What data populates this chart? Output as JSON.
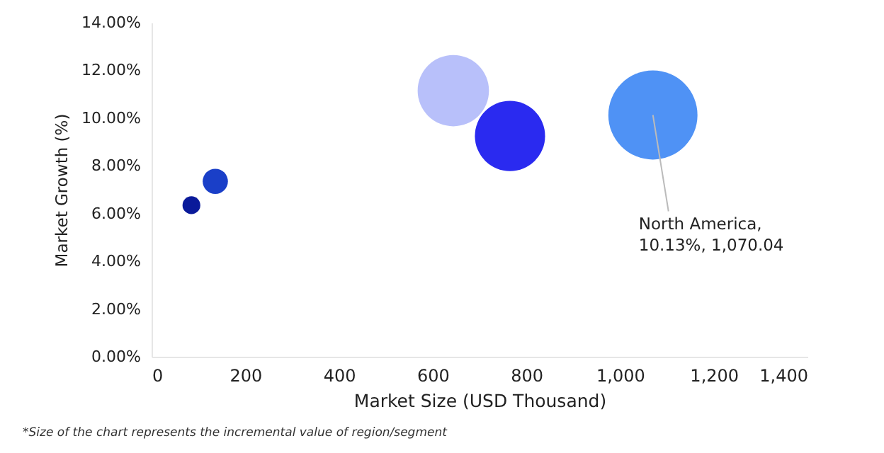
{
  "chart_data": {
    "type": "bubble",
    "xlabel": "Market Size (USD Thousand)",
    "ylabel": "Market Growth (%)",
    "x": [
      85,
      136,
      644,
      765,
      1070.04
    ],
    "series": [
      {
        "values": [
          6.35,
          7.35,
          11.15,
          9.25,
          10.13
        ],
        "sizes": [
          0.04,
          0.08,
          0.64,
          0.62,
          1
        ],
        "colors": [
          "#0a1a9a",
          "#1a3fc8",
          "#b8c0fa",
          "#2a2af0",
          "#4f92f5"
        ]
      }
    ],
    "xlim": [
      0,
      1400
    ],
    "xticks": [
      0,
      200,
      400,
      600,
      800,
      {
        "value": 1000,
        "label": "1,000"
      },
      {
        "value": 1200,
        "label": "1,200"
      },
      {
        "value": 1400,
        "label": "1,400"
      }
    ],
    "ylim": [
      0,
      14
    ],
    "yticks": [
      {
        "value": 0,
        "label": "0.00%"
      },
      {
        "value": 2,
        "label": "2.00%"
      },
      {
        "value": 4,
        "label": "4.00%"
      },
      {
        "value": 6,
        "label": "6.00%"
      },
      {
        "value": 8,
        "label": "8.00%"
      },
      {
        "value": 10,
        "label": "10.00%"
      },
      {
        "value": 12,
        "label": "12.00%"
      },
      {
        "value": 14,
        "label": "14.00%"
      }
    ],
    "grid": false,
    "annotations": [
      {
        "text": "North America,\n10.13%, 1,070.04",
        "x": 1070.04,
        "y": 10.13
      },
      "*Size of the chart represents the incremental value of region/segment"
    ]
  }
}
